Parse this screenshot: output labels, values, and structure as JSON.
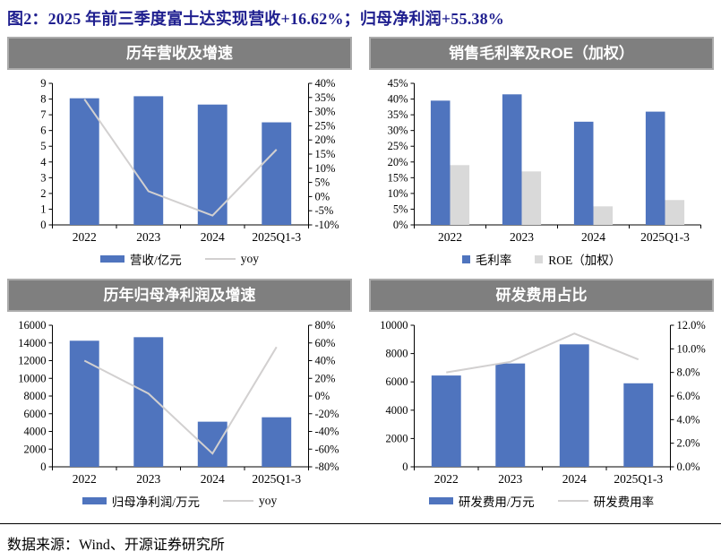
{
  "figure": {
    "title": "图2：2025 年前三季度富士达实现营收+16.62%；归母净利润+55.38%",
    "source": "数据来源：Wind、开源证券研究所"
  },
  "colors": {
    "title_blue": "#1f1f8f",
    "header_gray": "#7f7f7f",
    "header_border": "#ababab",
    "bar_blue": "#4f74be",
    "bar_gray": "#d9d9d9",
    "line_gray": "#d2d0d0"
  },
  "chart_data": [
    {
      "type": "bar+line",
      "title": "历年营收及增速",
      "categories": [
        "2022",
        "2023",
        "2024",
        "2025Q1-3"
      ],
      "bar_series": [
        {
          "name": "营收/亿元",
          "values": [
            8.05,
            8.18,
            7.65,
            6.52
          ],
          "color": "#4f74be"
        }
      ],
      "line_series": [
        {
          "name": "yoy",
          "values": [
            34.4,
            1.9,
            -6.7,
            16.62
          ],
          "color": "#d2d0d0"
        }
      ],
      "left_axis": {
        "min": 0,
        "max": 9,
        "step": 1,
        "format": "int"
      },
      "right_axis": {
        "min": -10,
        "max": 40,
        "step": 5,
        "format": "pct"
      },
      "legend_position": "bottom"
    },
    {
      "type": "bar",
      "title": "销售毛利率及ROE（加权）",
      "categories": [
        "2022",
        "2023",
        "2024",
        "2025Q1-3"
      ],
      "bar_series": [
        {
          "name": "毛利率",
          "values": [
            39.5,
            41.5,
            32.8,
            36.0
          ],
          "color": "#4f74be"
        },
        {
          "name": "ROE（加权）",
          "values": [
            19.0,
            17.0,
            5.9,
            7.9
          ],
          "color": "#d9d9d9"
        }
      ],
      "line_series": [],
      "left_axis": {
        "min": 0,
        "max": 45,
        "step": 5,
        "format": "pct"
      },
      "right_axis": null,
      "legend_position": "bottom"
    },
    {
      "type": "bar+line",
      "title": "历年归母净利润及增速",
      "categories": [
        "2022",
        "2023",
        "2024",
        "2025Q1-3"
      ],
      "bar_series": [
        {
          "name": "归母净利润/万元",
          "values": [
            14250,
            14650,
            5100,
            5600
          ],
          "color": "#4f74be"
        }
      ],
      "line_series": [
        {
          "name": "yoy",
          "values": [
            40,
            2.8,
            -65,
            55.38
          ],
          "color": "#d2d0d0"
        }
      ],
      "left_axis": {
        "min": 0,
        "max": 16000,
        "step": 2000,
        "format": "int"
      },
      "right_axis": {
        "min": -80,
        "max": 80,
        "step": 20,
        "format": "pct"
      },
      "legend_position": "bottom"
    },
    {
      "type": "bar+line",
      "title": "研发费用占比",
      "categories": [
        "2022",
        "2023",
        "2024",
        "2025Q1-3"
      ],
      "bar_series": [
        {
          "name": "研发费用/万元",
          "values": [
            6450,
            7300,
            8650,
            5900
          ],
          "color": "#4f74be"
        }
      ],
      "line_series": [
        {
          "name": "研发费用率",
          "values": [
            8.0,
            8.9,
            11.3,
            9.1
          ],
          "color": "#d2d0d0"
        }
      ],
      "left_axis": {
        "min": 0,
        "max": 10000,
        "step": 2000,
        "format": "int"
      },
      "right_axis": {
        "min": 0,
        "max": 12,
        "step": 2,
        "format": "pct1"
      },
      "legend_position": "bottom"
    }
  ]
}
